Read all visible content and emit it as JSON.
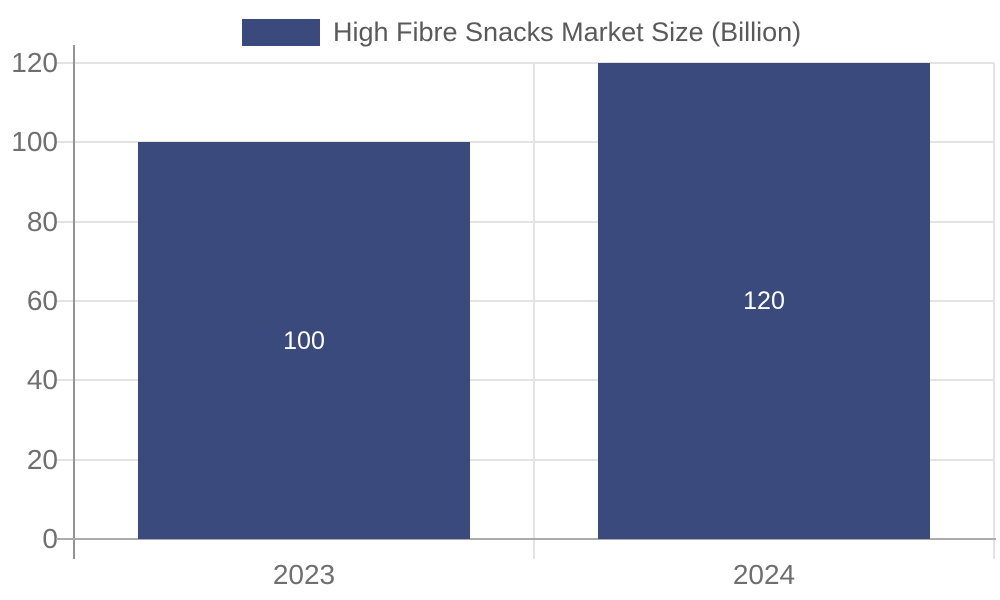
{
  "chart_data": {
    "type": "bar",
    "title": "High Fibre Snacks Market Size (Billion)",
    "categories": [
      "2023",
      "2024"
    ],
    "values": [
      100,
      120
    ],
    "data_labels": [
      "100",
      "120"
    ],
    "ytick_labels": [
      "0",
      "20",
      "40",
      "60",
      "80",
      "100",
      "120"
    ],
    "yticks": [
      0,
      20,
      40,
      60,
      80,
      100,
      120
    ],
    "ylim": [
      0,
      120
    ],
    "grid": true,
    "legend_position": "top-center",
    "xlabel": "",
    "ylabel": ""
  },
  "colors": {
    "bar": "#3A4A7C",
    "grid": "#E3E3E3",
    "y_axis_line": "#949494",
    "x_axis_line": "#ABABAB",
    "axis_text": "#6F6F6F",
    "legend_text": "#5A5A5A",
    "value_text": "#FFFFFF",
    "background": "#FFFFFF"
  }
}
